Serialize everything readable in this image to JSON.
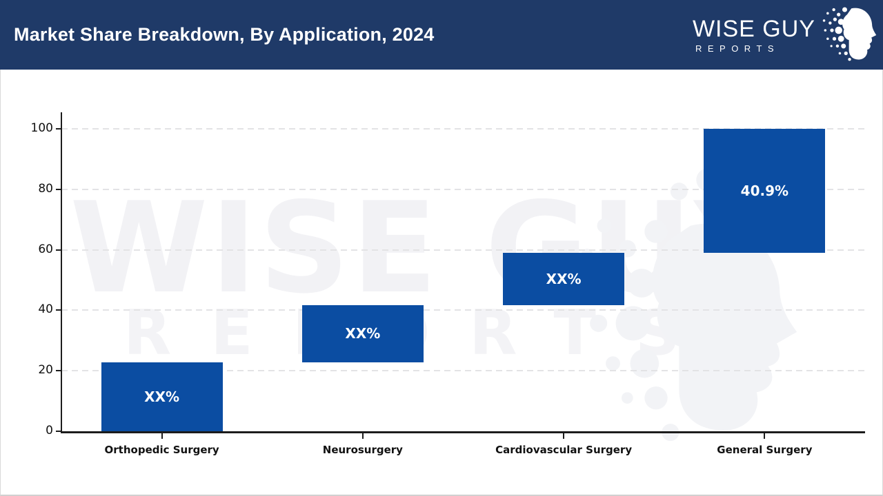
{
  "header": {
    "title": "Market Share Breakdown, By Application, 2024",
    "logo": {
      "line1": "WISE GUY",
      "line2": "REPORTS"
    }
  },
  "watermark": {
    "line1": "WISE GUY",
    "line2": "REPORTS"
  },
  "colors": {
    "header_bg": "#1f3a68",
    "bar": "#0b4da2",
    "bar_label": "#ffffff",
    "axis": "#1c1c1c",
    "grid": "#e3e3e5",
    "tick_text": "#111111",
    "watermark": "#f2f2f5"
  },
  "chart_data": {
    "type": "bar",
    "subtype": "waterfall",
    "title": "Market Share Breakdown, By Application, 2024",
    "xlabel": "",
    "ylabel": "",
    "categories": [
      "Orthopedic Surgery",
      "Neurosurgery",
      "Cardiovascular Surgery",
      "General Surgery"
    ],
    "segments": [
      {
        "category": "Orthopedic Surgery",
        "start": 0,
        "end": 22.8,
        "value": 22.8,
        "label": "XX%"
      },
      {
        "category": "Neurosurgery",
        "start": 22.8,
        "end": 41.7,
        "value": 18.9,
        "label": "XX%"
      },
      {
        "category": "Cardiovascular Surgery",
        "start": 41.7,
        "end": 59.1,
        "value": 17.4,
        "label": "XX%"
      },
      {
        "category": "General Surgery",
        "start": 59.1,
        "end": 100,
        "value": 40.9,
        "label": "40.9%"
      }
    ],
    "yticks": [
      0,
      20,
      40,
      60,
      80,
      100
    ],
    "ylim": [
      0,
      105
    ],
    "grid": "horizontal-dashed",
    "legend": "none"
  }
}
